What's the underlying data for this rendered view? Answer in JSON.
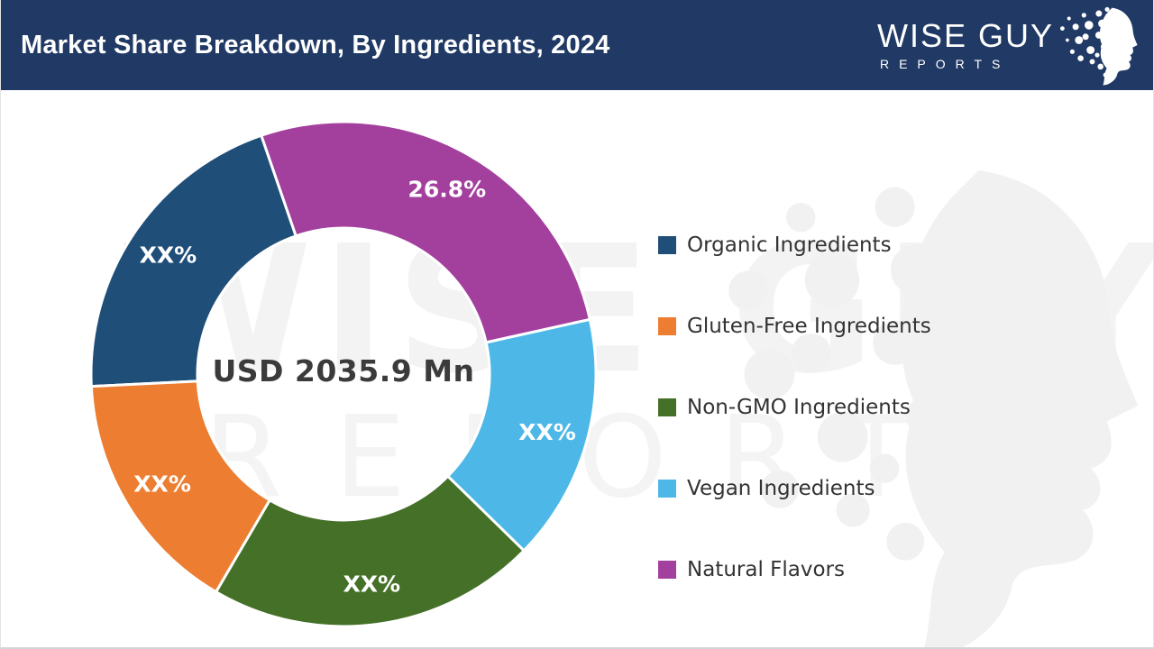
{
  "header": {
    "title": "Market Share Breakdown, By Ingredients, 2024",
    "logo": {
      "line1": "WISE GUY",
      "line2": "REPORTS"
    }
  },
  "watermark": {
    "line1": "WISE GUY",
    "line2": "REPORTS"
  },
  "chart_data": {
    "type": "pie",
    "subtype": "donut",
    "title": "Market Share Breakdown, By Ingredients, 2024",
    "center_label": "USD 2035.9 Mn",
    "start_angle_deg": 109,
    "direction": "counterclockwise",
    "inner_radius_ratio": 0.58,
    "legend_position": "right",
    "segments": [
      {
        "name": "Organic Ingredients",
        "value_label": "XX%",
        "percent": 20.5,
        "color": "#1F4E79"
      },
      {
        "name": "Gluten-Free Ingredients",
        "value_label": "XX%",
        "percent": 15.8,
        "color": "#ED7D31"
      },
      {
        "name": "Non-GMO Ingredients",
        "value_label": "XX%",
        "percent": 21.1,
        "color": "#447028"
      },
      {
        "name": "Vegan Ingredients",
        "value_label": "XX%",
        "percent": 15.8,
        "color": "#4DB8E8"
      },
      {
        "name": "Natural Flavors",
        "value_label": "26.8%",
        "percent": 26.8,
        "color": "#A33F9D"
      }
    ]
  },
  "colors": {
    "header_bg": "#213A65",
    "center_text": "#3B3B3B",
    "legend_text": "#333333",
    "watermark": "#F3F3F3",
    "slice_gap": "#FFFFFF"
  }
}
